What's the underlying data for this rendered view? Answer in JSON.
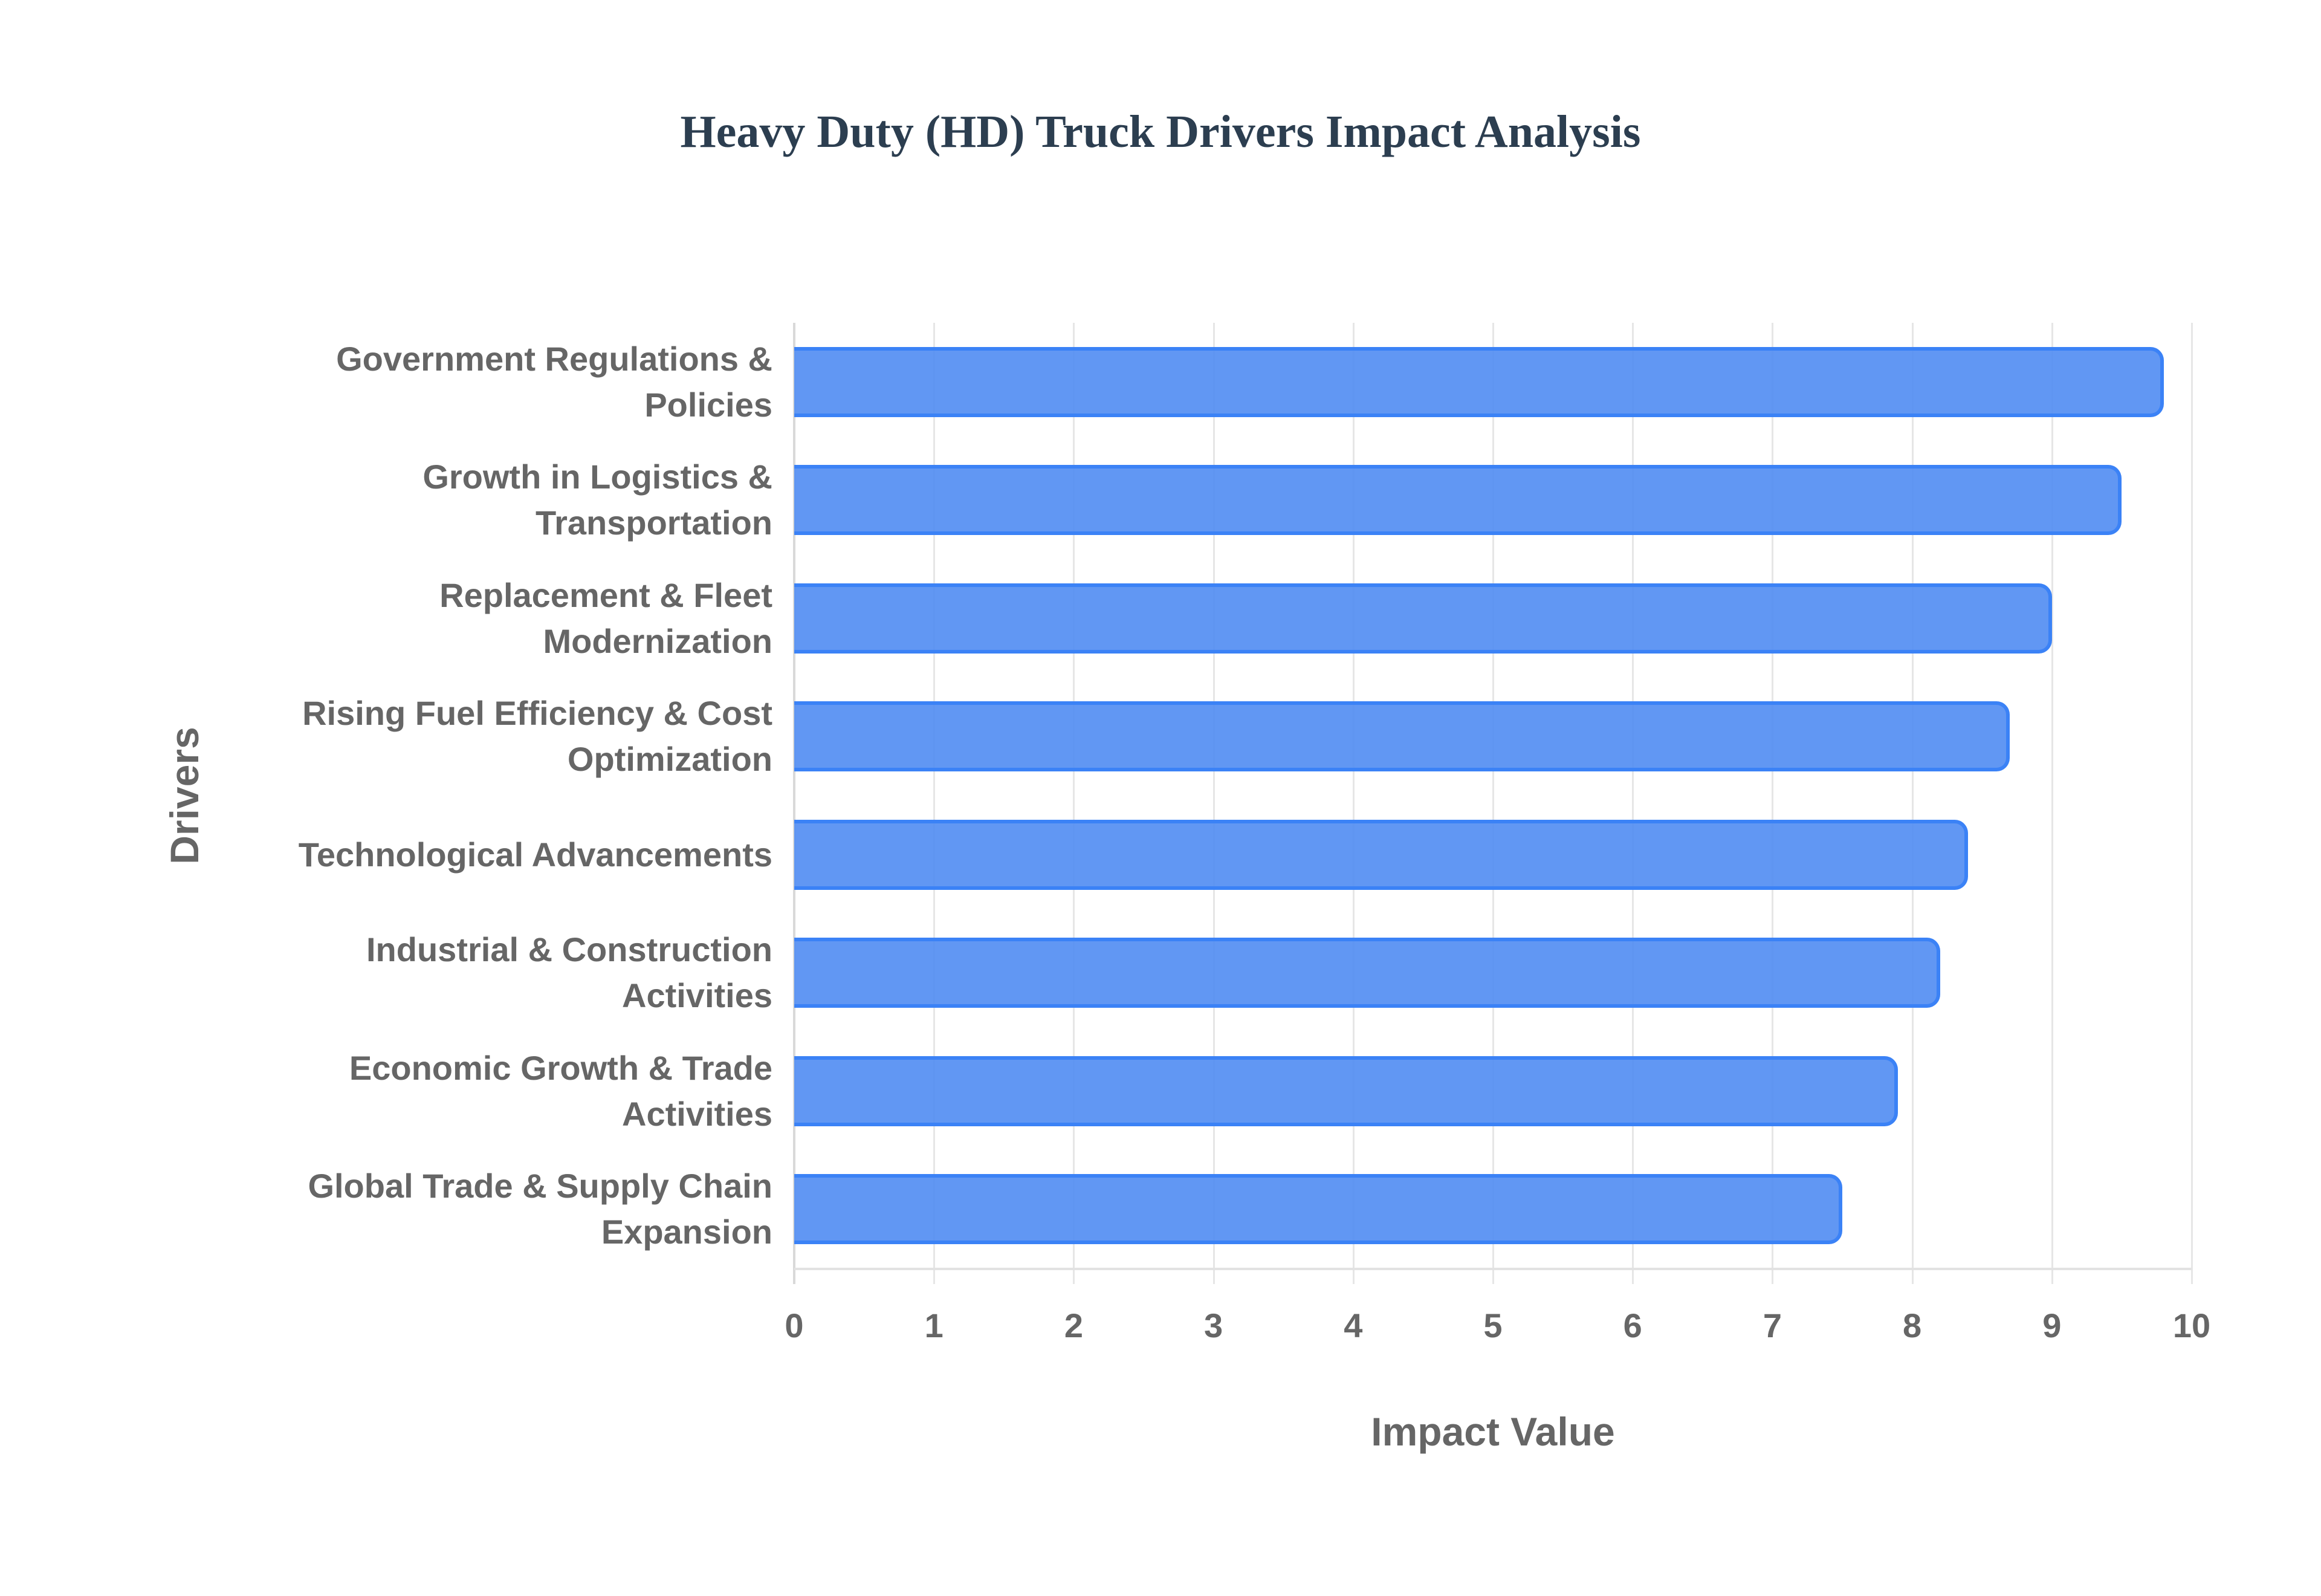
{
  "chart_data": {
    "type": "bar",
    "orientation": "horizontal",
    "title": "Heavy Duty (HD) Truck Drivers Impact Analysis",
    "xlabel": "Impact Value",
    "ylabel": "Drivers",
    "xlim": [
      0,
      10
    ],
    "xticks": [
      "0",
      "1",
      "2",
      "3",
      "4",
      "5",
      "6",
      "7",
      "8",
      "9",
      "10"
    ],
    "grid": true,
    "legend": null,
    "categories": [
      "Government Regulations & Policies",
      "Growth in Logistics & Transportation",
      "Replacement & Fleet Modernization",
      "Rising Fuel Efficiency & Cost Optimization",
      "Technological Advancements",
      "Industrial & Construction Activities",
      "Economic Growth & Trade Activities",
      "Global Trade & Supply Chain Expansion"
    ],
    "category_label_lines": [
      [
        "Government Regulations &",
        "Policies"
      ],
      [
        "Growth in Logistics &",
        "Transportation"
      ],
      [
        "Replacement & Fleet",
        "Modernization"
      ],
      [
        "Rising Fuel Efficiency & Cost",
        "Optimization"
      ],
      [
        "Technological Advancements"
      ],
      [
        "Industrial & Construction",
        "Activities"
      ],
      [
        "Economic Growth & Trade",
        "Activities"
      ],
      [
        "Global Trade & Supply Chain",
        "Expansion"
      ]
    ],
    "values": [
      9.8,
      9.5,
      9.0,
      8.7,
      8.4,
      8.2,
      7.9,
      7.5
    ],
    "colors": {
      "bar_fill": "#6199f4",
      "bar_border": "#3b82f6",
      "title": "#2c3e50",
      "text": "#666666",
      "grid": "#e6e6e6"
    }
  }
}
